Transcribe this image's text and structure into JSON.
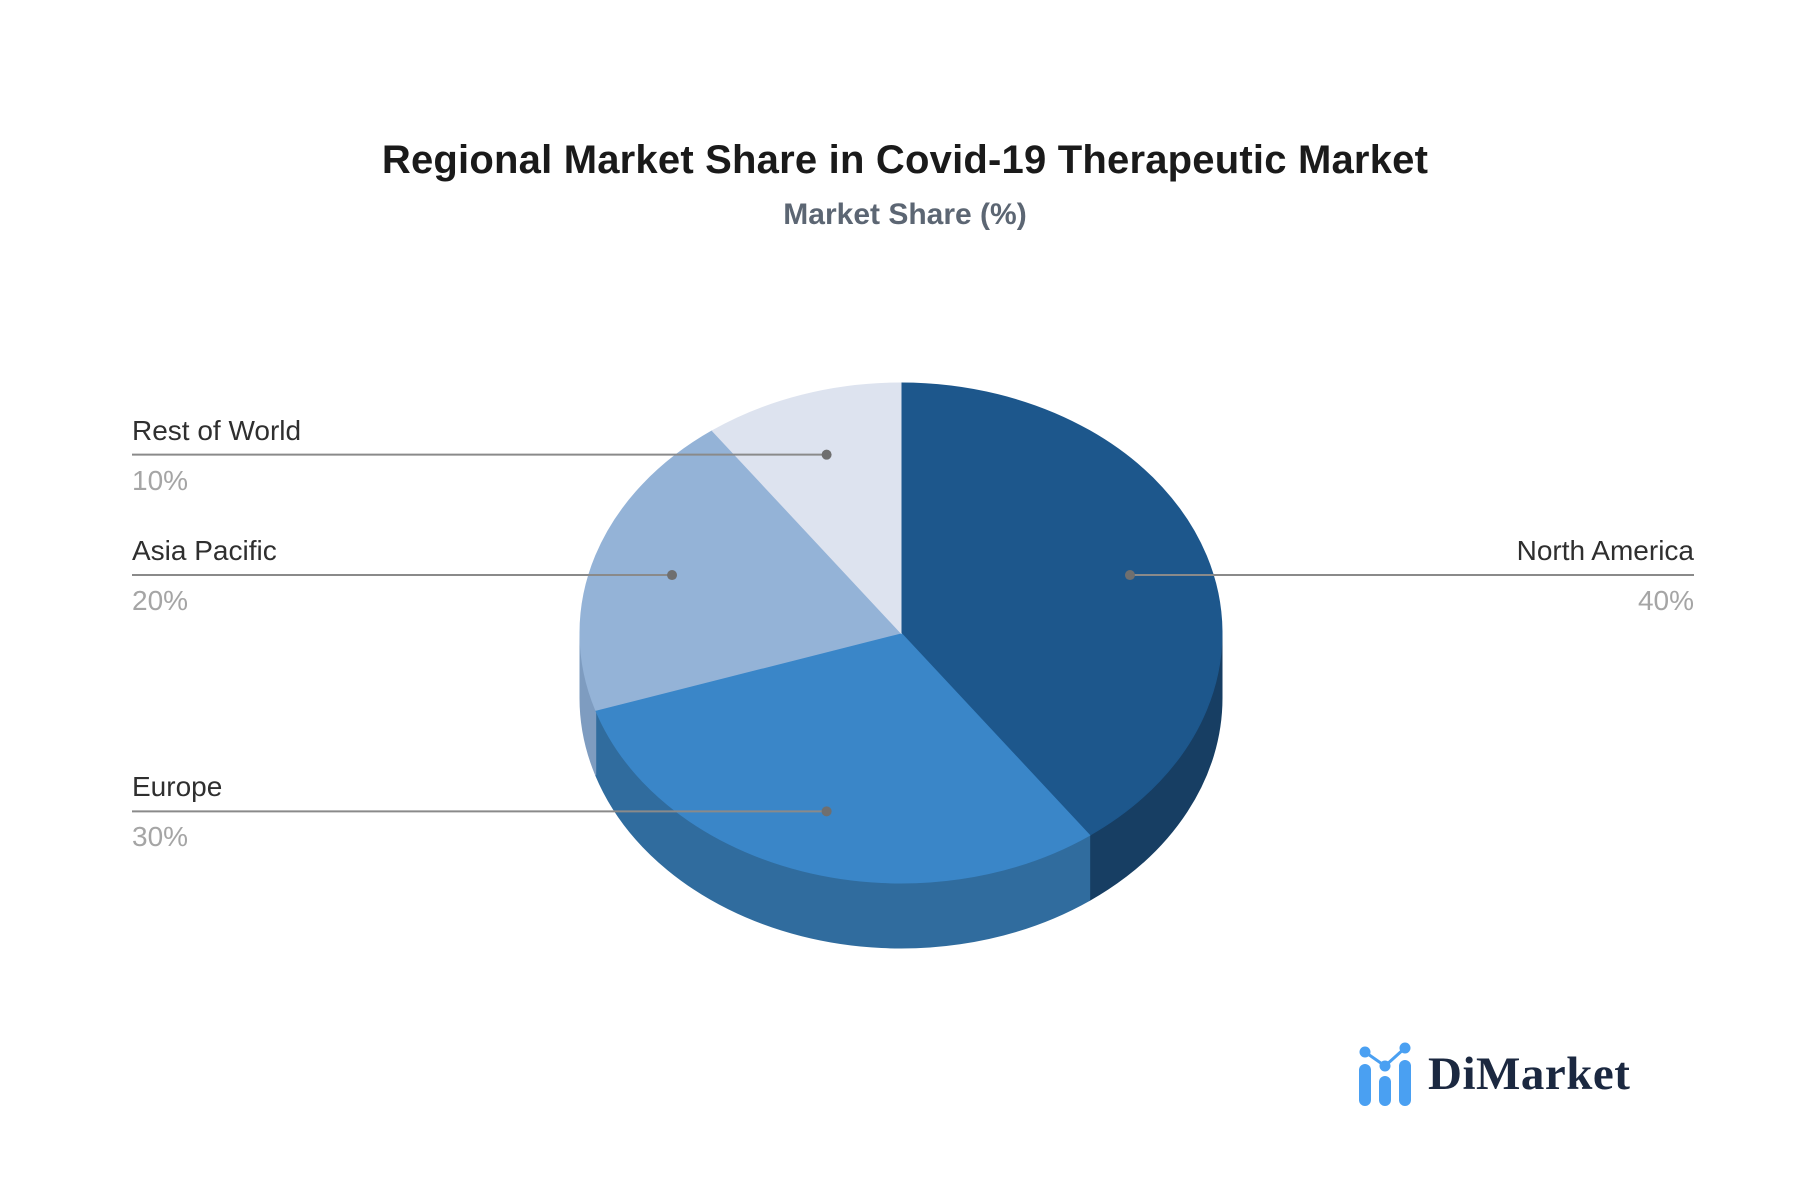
{
  "header": {
    "title": "Regional Market Share in Covid-19 Therapeutic Market",
    "subtitle": "Market Share (%)"
  },
  "chart_data": {
    "type": "pie",
    "title": "Regional Market Share in Covid-19 Therapeutic Market",
    "subtitle": "Market Share (%)",
    "unit": "percent",
    "style": "3d-pie",
    "legend": "none",
    "start_angle_deg": 90,
    "direction": "clockwise",
    "slices": [
      {
        "name": "North America",
        "value": 40,
        "pct_label": "40%",
        "color": "#1d578c",
        "side_color": "#173e63",
        "label_side": "right"
      },
      {
        "name": "Europe",
        "value": 30,
        "pct_label": "30%",
        "color": "#3a86c8",
        "side_color": "#306c9e",
        "label_side": "left"
      },
      {
        "name": "Asia Pacific",
        "value": 20,
        "pct_label": "20%",
        "color": "#94b3d7",
        "side_color": "#7e9cc0",
        "label_side": "left"
      },
      {
        "name": "Rest of World",
        "value": 10,
        "pct_label": "10%",
        "color": "#dde3ef",
        "side_color": "#c9d2e2",
        "label_side": "left"
      }
    ]
  },
  "logo": {
    "text": "DiMarket",
    "icon": "bar-line-chart-icon",
    "icon_color": "#4aa0f2",
    "text_color": "#1b2840"
  },
  "colors": {
    "background": "#ffffff",
    "leader_line": "#8a8a8a",
    "leader_dot": "#6f6f6f",
    "label_text": "#2f2f2f",
    "pct_text": "#a5a5a5",
    "title": "#1a1a1a",
    "subtitle": "#5c6673"
  }
}
